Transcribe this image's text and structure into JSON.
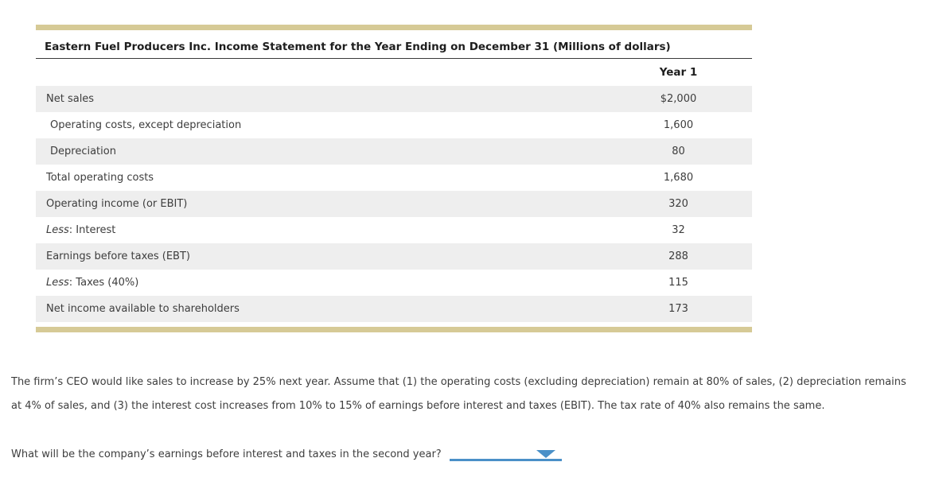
{
  "table": {
    "title": "Eastern Fuel Producers Inc. Income Statement for the Year Ending on December 31 (Millions of dollars)",
    "column_header": "Year 1",
    "rows": [
      {
        "prefix": "",
        "label": "Net sales",
        "value": "$2,000"
      },
      {
        "prefix": "",
        "label": "Operating costs, except depreciation",
        "value": "1,600"
      },
      {
        "prefix": "",
        "label": "Depreciation",
        "value": "80"
      },
      {
        "prefix": "",
        "label": "Total operating costs",
        "value": "1,680"
      },
      {
        "prefix": "",
        "label": "Operating income (or EBIT)",
        "value": "320"
      },
      {
        "prefix": "Less",
        "label": ": Interest",
        "value": "32"
      },
      {
        "prefix": "",
        "label": "Earnings before taxes (EBT)",
        "value": "288"
      },
      {
        "prefix": "Less",
        "label": ": Taxes (40%)",
        "value": "115"
      },
      {
        "prefix": "",
        "label": "Net income available to shareholders",
        "value": "173"
      }
    ]
  },
  "paragraph": "The firm’s CEO would like sales to increase by 25% next year. Assume that (1) the operating costs (excluding depreciation) remain at 80% of sales, (2) depreciation remains at 4% of sales, and (3) the interest cost increases from 10% to 15% of earnings before interest and taxes (EBIT). The tax rate of 40% also remains the same.",
  "question": {
    "text": "What will be the company’s earnings before interest and taxes in the second year?",
    "dropdown_value": ""
  },
  "icons": {
    "caret": "caret-down-icon"
  },
  "colors": {
    "accent_tan": "#d6ca96",
    "row_stripe": "#eeeeee",
    "dropdown_blue": "#4a90c8",
    "title_rule": "#3a3a3a"
  }
}
